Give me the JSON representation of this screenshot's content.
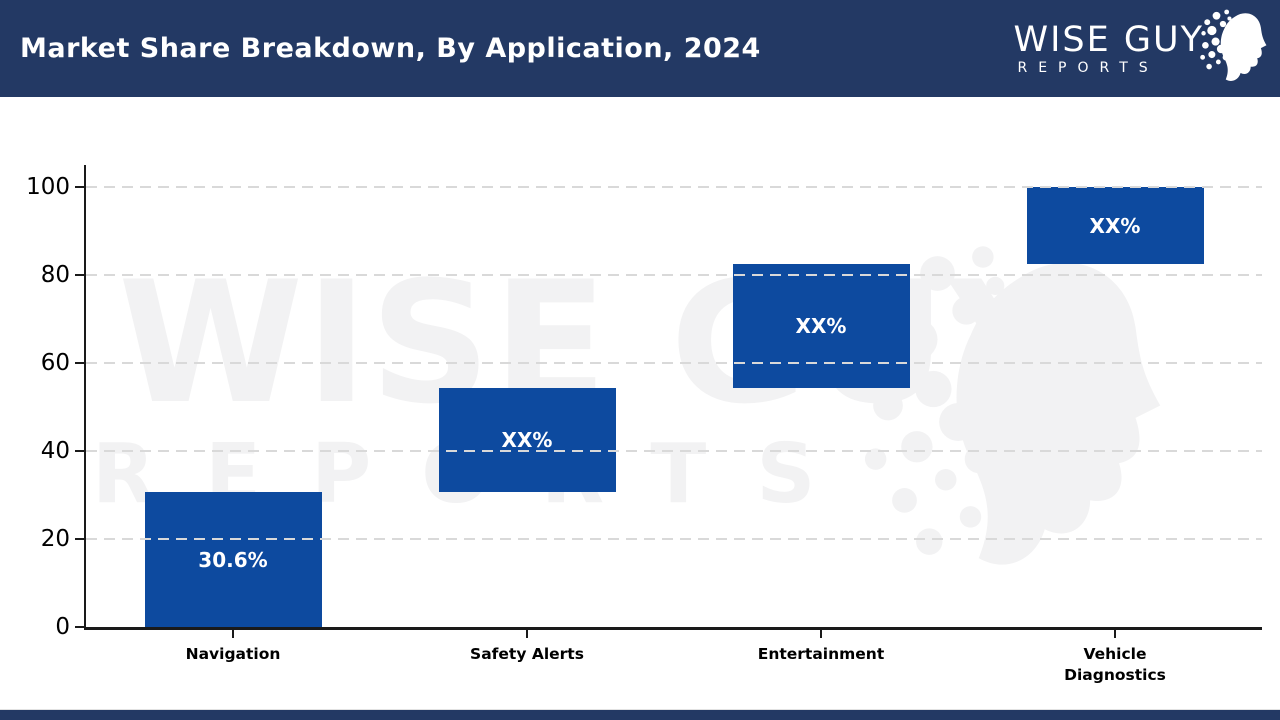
{
  "header": {
    "title": "Market Share Breakdown, By Application, 2024",
    "bg_color": "#233964",
    "logo": {
      "line1": "WISE GUY",
      "line2": "REPORTS"
    }
  },
  "watermark": {
    "line1": "WISE GUY",
    "line2": "REPORTS",
    "color": "#f2f2f3"
  },
  "chart_data": {
    "type": "bar",
    "subtype": "waterfall",
    "title": "Market Share Breakdown, By Application, 2024",
    "xlabel": "",
    "ylabel": "",
    "categories": [
      "Navigation",
      "Safety Alerts",
      "Entertainment",
      "Vehicle Diagnostics"
    ],
    "segments": [
      {
        "category": "Navigation",
        "start": 0,
        "end": 30.6,
        "label": "30.6%"
      },
      {
        "category": "Safety Alerts",
        "start": 30.6,
        "end": 54.3,
        "label": "XX%"
      },
      {
        "category": "Entertainment",
        "start": 54.3,
        "end": 82.5,
        "label": "XX%"
      },
      {
        "category": "Vehicle Diagnostics",
        "start": 82.5,
        "end": 100,
        "label": "XX%"
      }
    ],
    "y_ticks": [
      0,
      20,
      40,
      60,
      80,
      100
    ],
    "ylim": [
      0,
      108
    ],
    "grid": "horizontal-dashed",
    "legend": "none",
    "bar_color": "#0d4a9f",
    "bar_label_color": "#ffffff",
    "grid_color": "#d9d9d9",
    "axis_color": "#1a1a1a"
  }
}
